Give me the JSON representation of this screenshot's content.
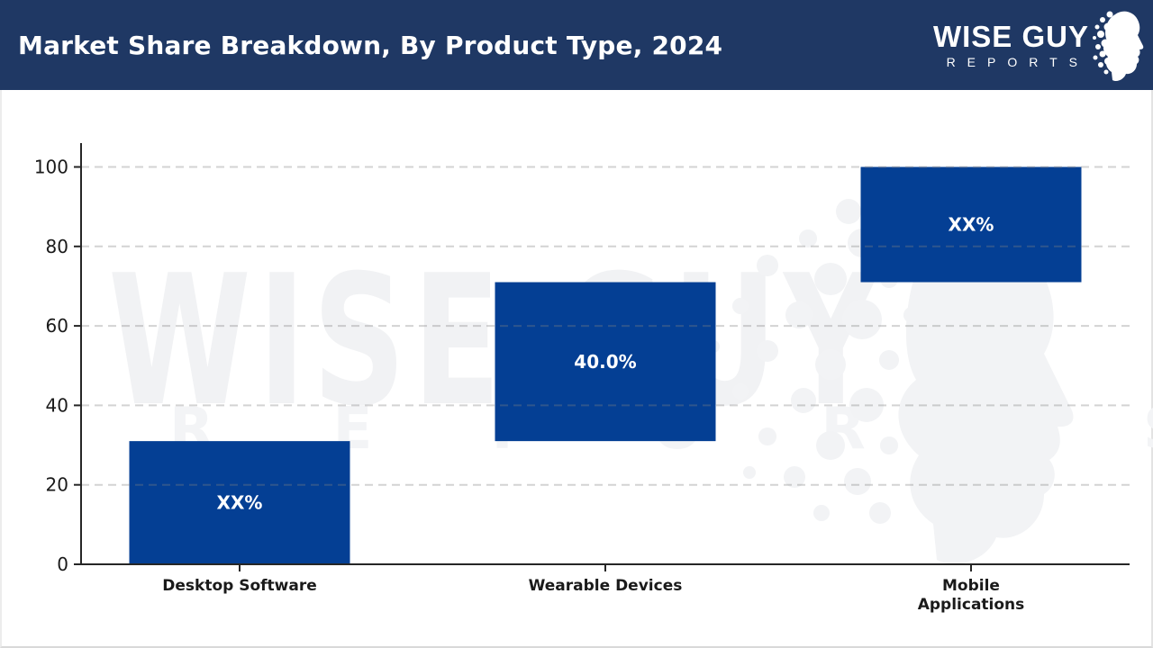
{
  "header": {
    "title": "Market Share Breakdown, By Product Type, 2024",
    "logo": {
      "line1": "WISE GUY",
      "line2": "REPORTS"
    }
  },
  "watermark": {
    "line1": "WISE GUY",
    "line2": "R E P O R T S"
  },
  "chart_data": {
    "type": "bar",
    "variant": "floating-waterfall",
    "title": "Market Share Breakdown, By Product Type, 2024",
    "categories": [
      "Desktop Software",
      "Wearable Devices",
      "Mobile Applications"
    ],
    "category_label_lines": [
      [
        "Desktop Software"
      ],
      [
        "Wearable Devices"
      ],
      [
        "Mobile",
        "Applications"
      ]
    ],
    "segments": [
      {
        "category": "Desktop Software",
        "start": 0,
        "end": 31,
        "label": "XX%"
      },
      {
        "category": "Wearable Devices",
        "start": 31,
        "end": 71,
        "label": "40.0%"
      },
      {
        "category": "Mobile Applications",
        "start": 71,
        "end": 100,
        "label": "XX%"
      }
    ],
    "yticks": [
      0,
      20,
      40,
      60,
      80,
      100
    ],
    "ylim": [
      0,
      106
    ],
    "xlabel": "",
    "ylabel": "",
    "grid": "horizontal-dashed",
    "legend": "none",
    "bar_color": "#043f94",
    "bar_label_color": "#ffffff",
    "axis_color": "#262626",
    "tick_label_color": "#1a1a1a"
  }
}
